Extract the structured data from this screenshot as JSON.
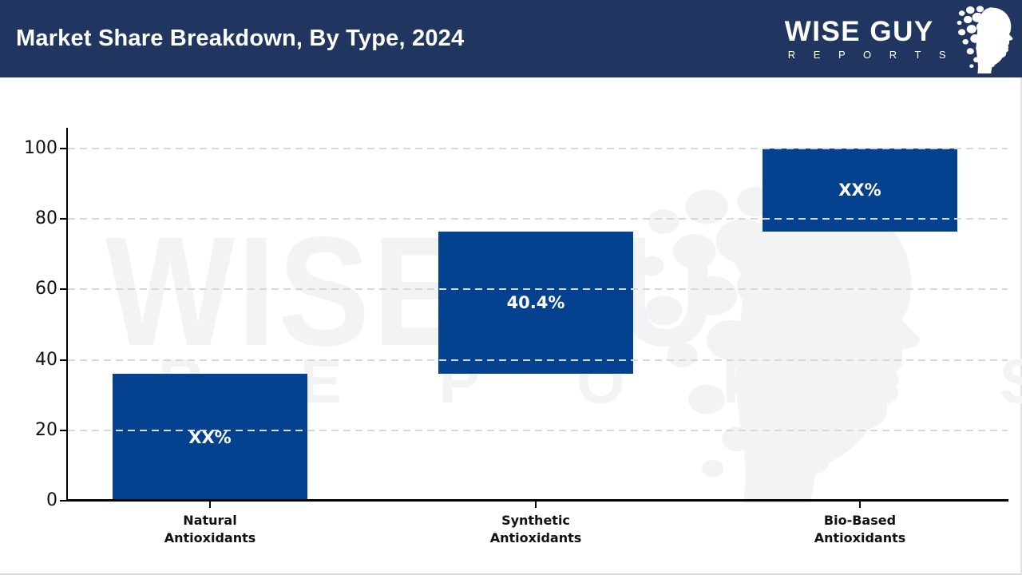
{
  "header": {
    "title": "Market Share Breakdown, By Type, 2024",
    "logo": {
      "brand_line1": "WISE GUY",
      "brand_line2": "R E P O R T S"
    }
  },
  "watermark": {
    "big_text": "WISE GUY",
    "small_text": "R E P O R T S"
  },
  "colors": {
    "header_bg": "#213561",
    "bar_fill": "#04428f",
    "bar_label_text": "#ffffff",
    "grid_line": "#d8d8d8",
    "axis_line": "#000000",
    "watermark": "#f2f3f5"
  },
  "chart_data": {
    "type": "bar",
    "subtype": "waterfall",
    "title": "Market Share Breakdown, By Type, 2024",
    "xlabel": "",
    "ylabel": "",
    "ylim": [
      0,
      100
    ],
    "yticks": [
      0,
      20,
      40,
      60,
      80,
      100
    ],
    "grid": "horizontal dashed",
    "legend": "none",
    "categories": [
      "Natural\nAntioxidants",
      "Synthetic\nAntioxidants",
      "Bio-Based\nAntioxidants"
    ],
    "bars": [
      {
        "category": "Natural Antioxidants",
        "start": 0,
        "end": 36,
        "height_pct": 36,
        "value_label": "XX%"
      },
      {
        "category": "Synthetic Antioxidants",
        "start": 36,
        "end": 76.4,
        "height_pct": 40.4,
        "value_label": "40.4%"
      },
      {
        "category": "Bio-Based Antioxidants",
        "start": 76.4,
        "end": 100,
        "height_pct": 23.6,
        "value_label": "XX%"
      }
    ]
  }
}
